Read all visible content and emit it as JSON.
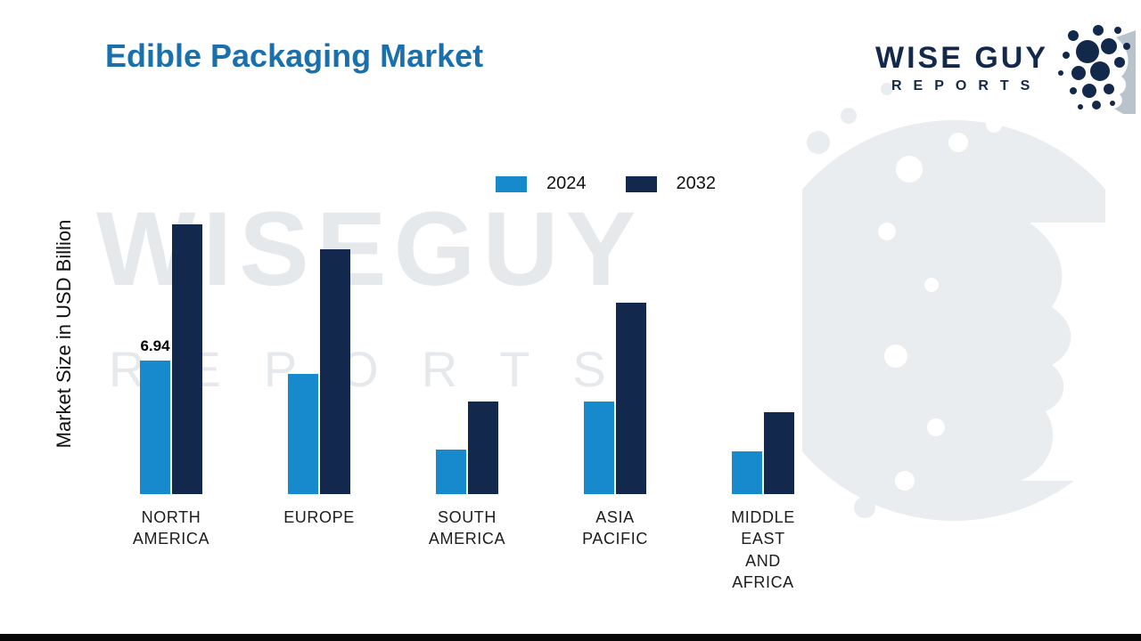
{
  "logo": {
    "wordmark": "WISE GUY",
    "subtext": "REPORTS",
    "color": "#13294b"
  },
  "watermark": {
    "line1": "WISEGUY",
    "line2": "REPORTS"
  },
  "colors": {
    "title": "#1a6fad",
    "series_2024": "#1789cd",
    "series_2032": "#12284c",
    "bottom_bar": "#070707"
  },
  "chart_data": {
    "type": "bar",
    "title": "Edible Packaging Market",
    "ylabel": "Market Size in USD Billion",
    "xlabel": "",
    "categories": [
      "NORTH\nAMERICA",
      "EUROPE",
      "SOUTH\nAMERICA",
      "ASIA\nPACIFIC",
      "MIDDLE\nEAST\nAND\nAFRICA"
    ],
    "series": [
      {
        "name": "2024",
        "color": "#1789cd",
        "values": [
          6.94,
          6.25,
          2.3,
          4.8,
          2.2
        ]
      },
      {
        "name": "2032",
        "color": "#12284c",
        "values": [
          14.0,
          12.7,
          4.8,
          9.9,
          4.25
        ]
      }
    ],
    "ylim": [
      0,
      15
    ],
    "grid": false,
    "legend_position": "top-right",
    "annotation": {
      "text": "6.94",
      "category_index": 0,
      "series_index": 0
    }
  }
}
